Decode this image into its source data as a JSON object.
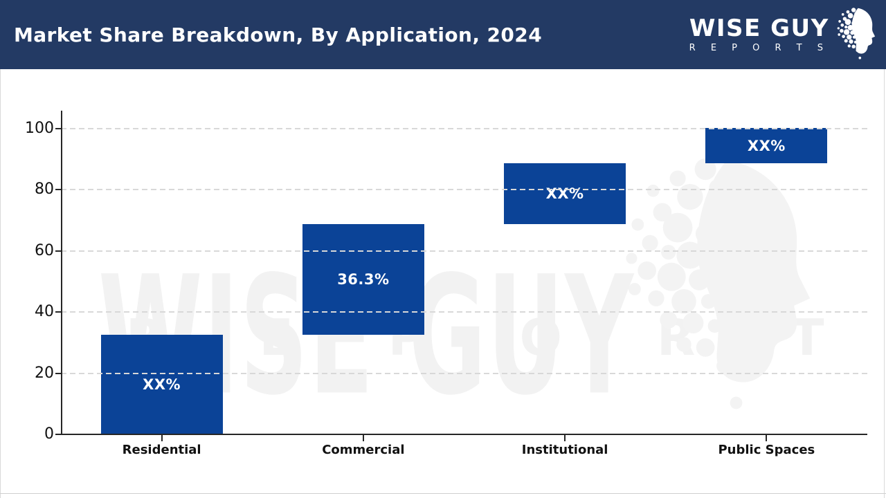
{
  "header": {
    "title": "Market Share Breakdown, By Application, 2024",
    "logo": {
      "line1": "WISE GUY",
      "line2": "R E P O R T S"
    }
  },
  "watermark": {
    "line1": "WISE GUY",
    "line2": "R E P O R T S"
  },
  "colors": {
    "header_bg": "#233A64",
    "bar": "#0B4397",
    "grid": "#d8d8d8",
    "axis": "#262626",
    "bar_label_text": "#ffffff",
    "watermark": "#f2f2f2"
  },
  "chart_data": {
    "type": "bar",
    "variant": "floating-waterfall",
    "title": "Market Share Breakdown, By Application, 2024",
    "categories": [
      "Residential",
      "Commercial",
      "Institutional",
      "Public Spaces"
    ],
    "segments": [
      {
        "category": "Residential",
        "start": 0,
        "end": 32.3,
        "label": "XX%"
      },
      {
        "category": "Commercial",
        "start": 32.3,
        "end": 68.6,
        "label": "36.3%"
      },
      {
        "category": "Institutional",
        "start": 68.6,
        "end": 88.4,
        "label": "XX%"
      },
      {
        "category": "Public Spaces",
        "start": 88.4,
        "end": 100,
        "label": "XX%"
      }
    ],
    "ylim": [
      0,
      100
    ],
    "yticks": [
      0,
      20,
      40,
      60,
      80,
      100
    ],
    "xlabel": "",
    "ylabel": "",
    "grid": "dashed-horizontal",
    "legend": "none"
  }
}
